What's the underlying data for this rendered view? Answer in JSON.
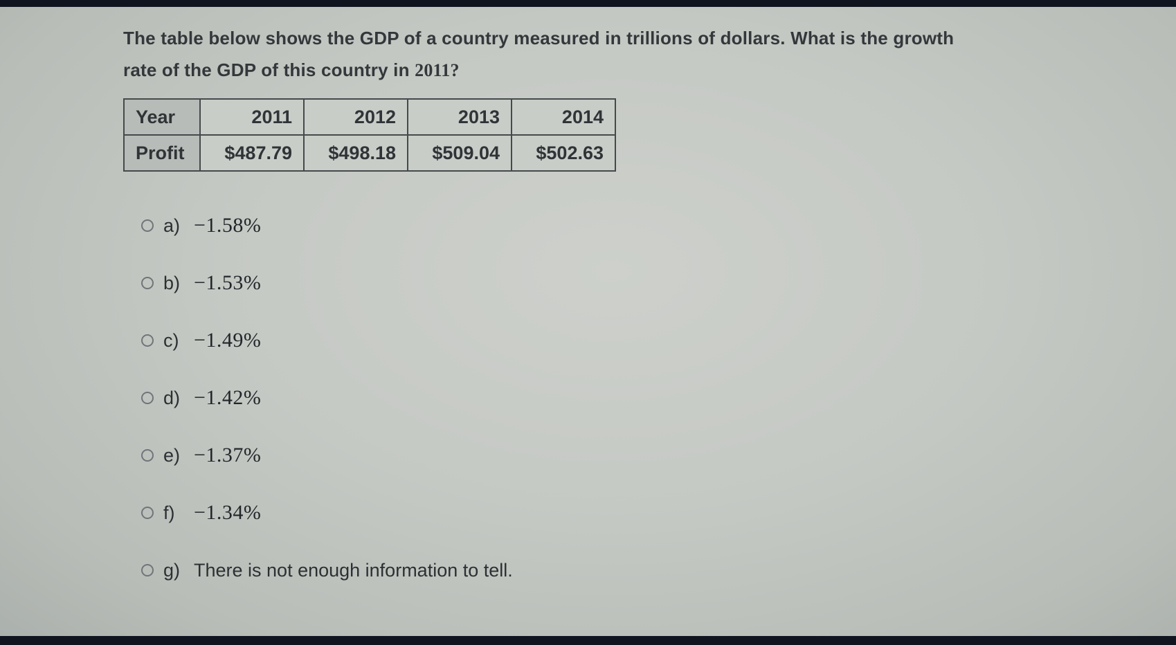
{
  "page": {
    "background_color": "#c5c9c4",
    "bar_color": "#10141f"
  },
  "question": {
    "text": "The table below shows the GDP of a country measured in trillions of dollars. What is the growth rate of the GDP of this country in",
    "math_year": "2011?"
  },
  "table": {
    "header_label": "Year",
    "row_label": "Profit",
    "years": [
      "2011",
      "2012",
      "2013",
      "2014"
    ],
    "profits": [
      "$487.79",
      "$498.18",
      "$509.04",
      "$502.63"
    ]
  },
  "options": [
    {
      "label": "a)",
      "value": "−1.58%"
    },
    {
      "label": "b)",
      "value": "−1.53%"
    },
    {
      "label": "c)",
      "value": "−1.49%"
    },
    {
      "label": "d)",
      "value": "−1.42%"
    },
    {
      "label": "e)",
      "value": "−1.37%"
    },
    {
      "label": "f)",
      "value": "−1.34%"
    },
    {
      "label": "g)",
      "value": "There is not enough information to tell."
    }
  ]
}
